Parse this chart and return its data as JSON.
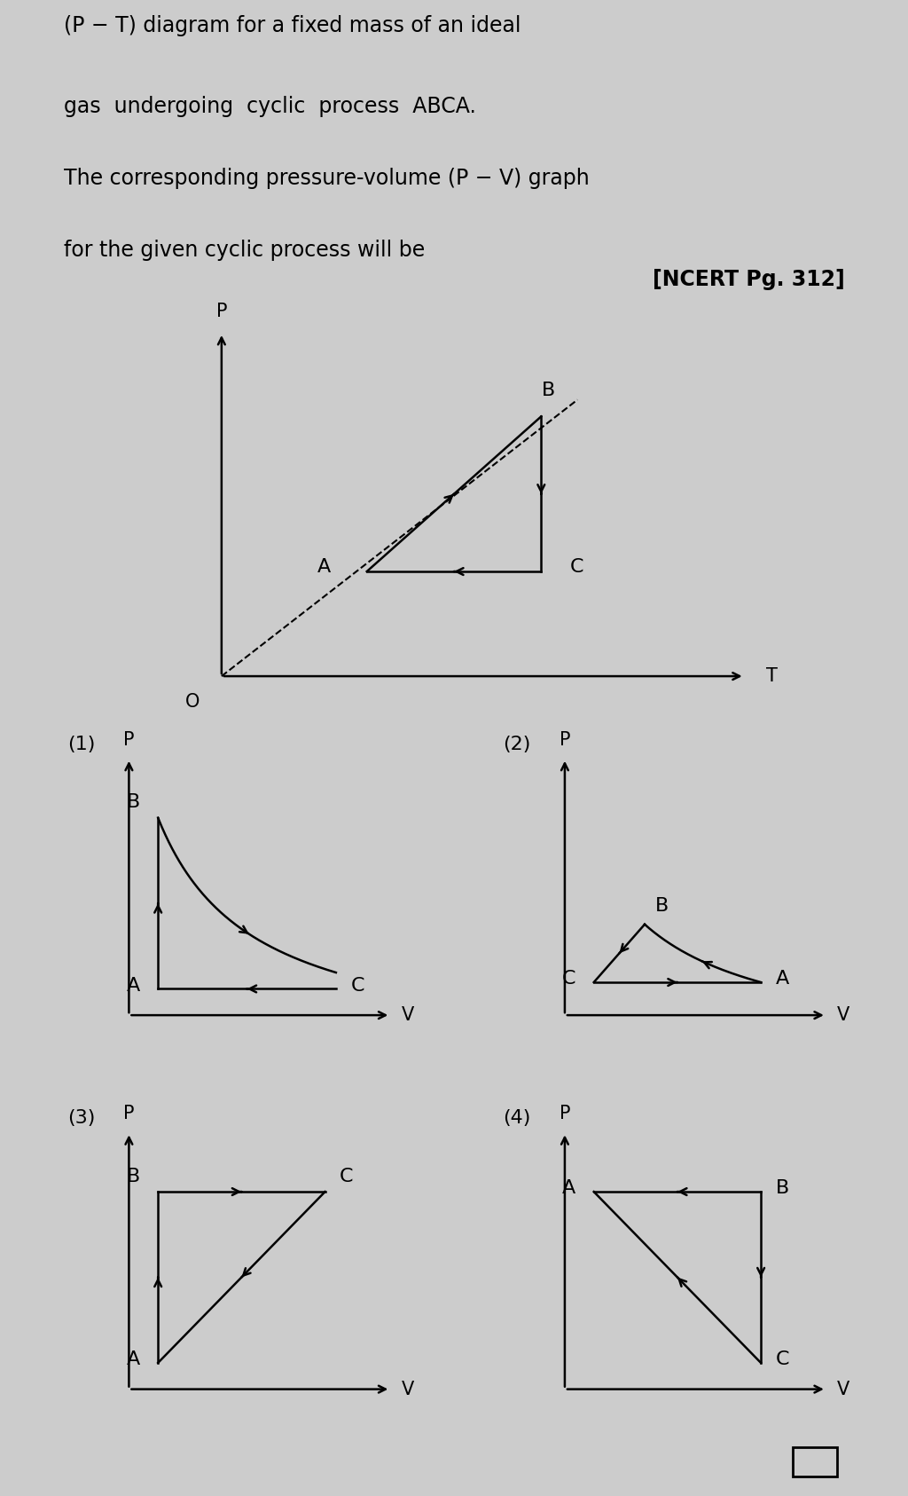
{
  "bg_color": "#cccccc",
  "text_color": "#000000",
  "title_line1": "(P − T) diagram for a fixed mass of an ideal",
  "title_line2": "gas  undergoing  cyclic  process  ABCA.",
  "title_line3": "The corresponding pressure-volume (P − V) graph",
  "title_line4": "for the given cyclic process will be",
  "ncert_ref": "[NCERT Pg. 312]",
  "lw": 1.8,
  "arrow_ms": 14,
  "font_size_text": 17,
  "font_size_label": 15,
  "font_size_num": 16
}
